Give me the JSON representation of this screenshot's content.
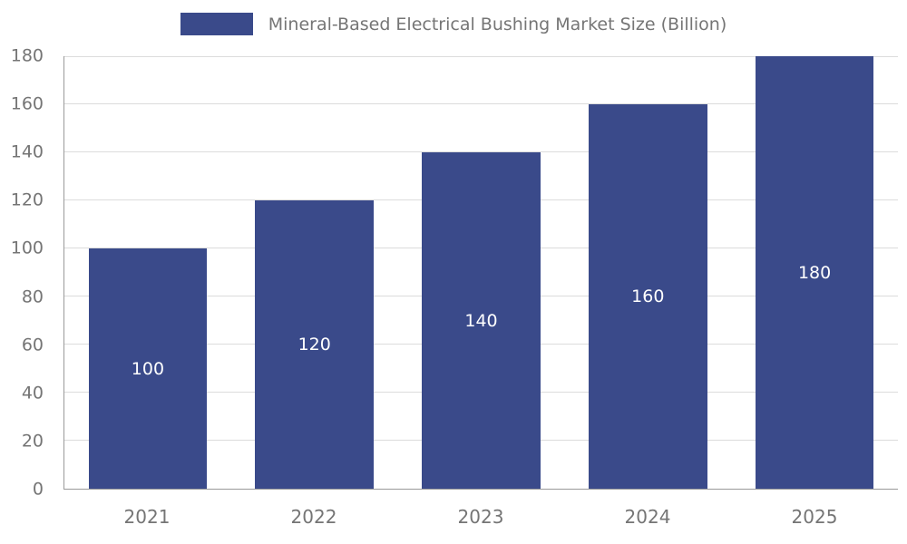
{
  "legend": {
    "label": "Mineral-Based Electrical Bushing Market Size (Billion)"
  },
  "chart_data": {
    "type": "bar",
    "title": "Mineral-Based Electrical Bushing Market Size (Billion)",
    "categories": [
      "2021",
      "2022",
      "2023",
      "2024",
      "2025"
    ],
    "values": [
      100,
      120,
      140,
      160,
      180
    ],
    "xlabel": "",
    "ylabel": "",
    "ylim": [
      0,
      180
    ],
    "ytick_step": 20,
    "grid": true,
    "legend_position": "top",
    "bar_color": "#3A4A8A",
    "value_label_color": "#ffffff",
    "tick_label_color": "#757575",
    "gridline_color": "#dcdcdc",
    "axis_line_color": "#9a9a9a",
    "background_color": "#ffffff"
  }
}
